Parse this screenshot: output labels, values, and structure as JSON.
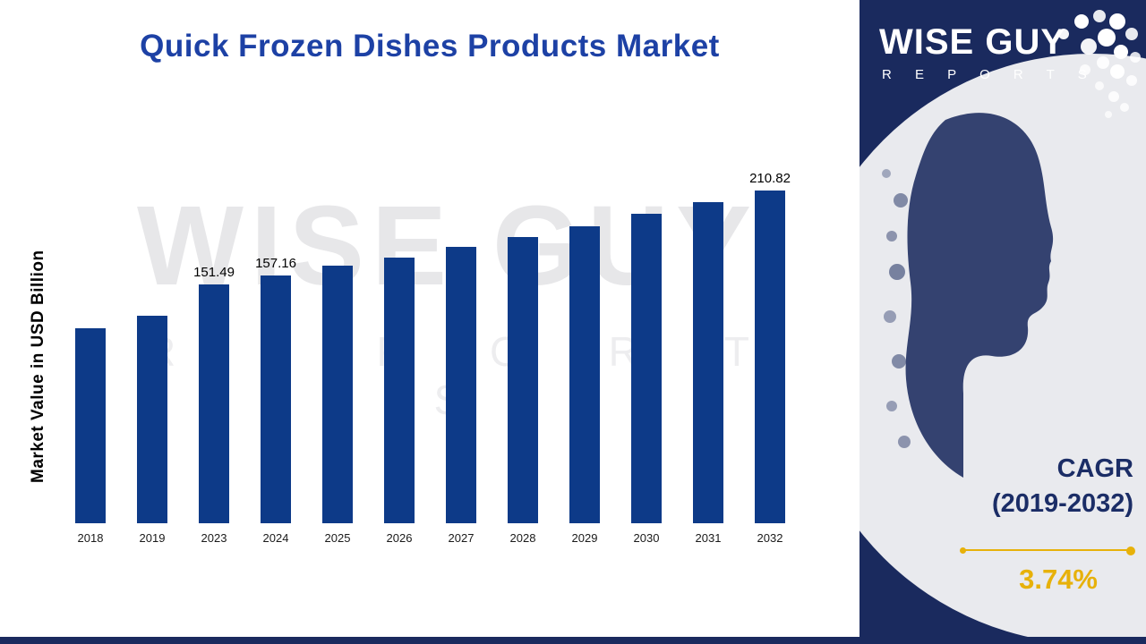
{
  "title": "Quick Frozen Dishes Products Market",
  "watermark": {
    "line1": "WISE GUY",
    "line2": "R E P O R T S"
  },
  "brand": {
    "name": "WISE GUY",
    "sub": "R E P O R T S"
  },
  "cagr": {
    "label": "CAGR",
    "range": "(2019-2032)",
    "value": "3.74%"
  },
  "colors": {
    "panel_navy": "#1a2a5e",
    "bar_blue": "#0d3a88",
    "title_blue": "#1d41a5",
    "accent_yellow": "#e7b10a",
    "circle_gray": "#e9eaee"
  },
  "chart_data": {
    "type": "bar",
    "title": "Quick Frozen Dishes Products Market",
    "xlabel": "",
    "ylabel": "Market Value in USD Billion",
    "categories": [
      "2018",
      "2019",
      "2023",
      "2024",
      "2025",
      "2026",
      "2027",
      "2028",
      "2029",
      "2030",
      "2031",
      "2032"
    ],
    "values": [
      123.5,
      131.6,
      151.49,
      157.16,
      163.2,
      168.5,
      175.0,
      181.5,
      188.3,
      196.2,
      203.4,
      210.82
    ],
    "value_labels": [
      "",
      "",
      "151.49",
      "157.16",
      "",
      "",
      "",
      "",
      "",
      "",
      "",
      "210.82"
    ],
    "ylim": [
      0,
      220
    ],
    "grid": false,
    "legend": false,
    "bar_color": "#0d3a88"
  }
}
